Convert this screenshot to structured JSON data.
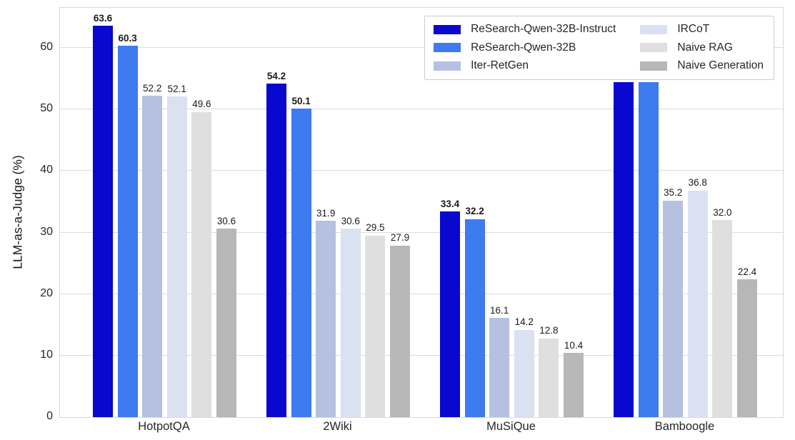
{
  "chart_data": {
    "type": "bar",
    "title": "",
    "ylabel": "LLM-as-a-Judge (%)",
    "xlabel": "",
    "categories": [
      "HotpotQA",
      "2Wiki",
      "MuSiQue",
      "Bamboogle"
    ],
    "series": [
      {
        "name": "ReSearch-Qwen-32B-Instruct",
        "color": "#0808ce",
        "bold_value_labels": true,
        "values": [
          63.6,
          54.2,
          33.4,
          54.4
        ]
      },
      {
        "name": "ReSearch-Qwen-32B",
        "color": "#3e7af0",
        "bold_value_labels": true,
        "values": [
          60.3,
          50.1,
          32.2,
          54.4
        ]
      },
      {
        "name": "Iter-RetGen",
        "color": "#b6c1e2",
        "bold_value_labels": false,
        "values": [
          52.2,
          31.9,
          16.1,
          35.2
        ]
      },
      {
        "name": "IRCoT",
        "color": "#dae1f1",
        "bold_value_labels": false,
        "values": [
          52.1,
          30.6,
          14.2,
          36.8
        ]
      },
      {
        "name": "Naive RAG",
        "color": "#dfdfdf",
        "bold_value_labels": false,
        "values": [
          49.6,
          29.5,
          12.8,
          32.0
        ]
      },
      {
        "name": "Naive Generation",
        "color": "#b7b7b7",
        "bold_value_labels": false,
        "values": [
          30.6,
          27.9,
          10.4,
          22.4
        ]
      }
    ],
    "yticks": [
      0,
      10,
      20,
      30,
      40,
      50,
      60
    ],
    "ylim": [
      0,
      66.5
    ],
    "grid": "horizontal",
    "gridline_color": "#dcdcdc",
    "legend_position": "upper-right",
    "legend_columns": 2,
    "value_label_decimals": 1
  }
}
